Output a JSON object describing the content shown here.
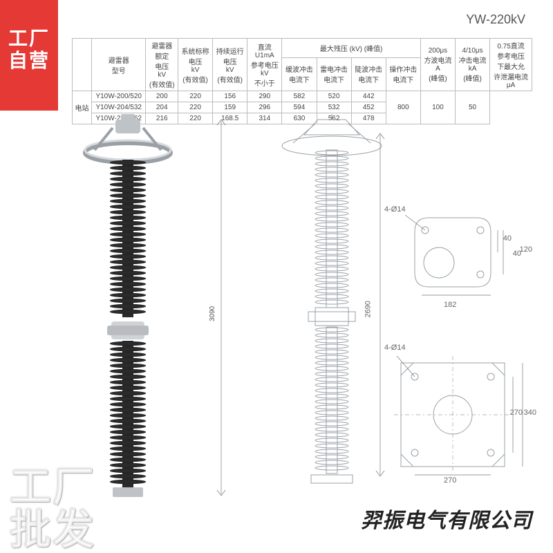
{
  "badge": {
    "line1": "工厂",
    "line2": "自营"
  },
  "model": "YW-220kV",
  "promo": {
    "line1": "工厂",
    "line2": "批发"
  },
  "company": "羿振电气有限公司",
  "table": {
    "header_bg": "#ffffff",
    "border": "#bbbbbb",
    "font_size": 10,
    "row_label": "电站",
    "cols": {
      "col0": "避雷器\n型号",
      "col1": "避雷器\n额定\n电压\nkV\n(有效值)",
      "col2": "系统标称\n电压\nkV\n(有效值)",
      "col3": "持续运行\n电压\nkV\n(有效值)",
      "col4": "直流\nU1mA\n参考电压\nkV\n不小于",
      "group5": "最大残压 (kV) (峰值)",
      "col5a": "缓波冲击\n电流下",
      "col5b": "雷电冲击\n电流下",
      "col5c": "陡波冲击\n电流下",
      "col5d": "操作冲击\n电流下",
      "col6": "200μs\n方波电流\nA\n(峰值)",
      "col7": "4/10μs\n冲击电流\nkA\n(峰值)",
      "col8": "0.75直流\n参考电压\n下最大允\n许泄漏电流\nμA"
    },
    "rows": [
      {
        "model": "Y10W-200/520",
        "v": [
          "200",
          "220",
          "156",
          "290",
          "582",
          "520",
          "442",
          "800",
          "100",
          "50"
        ]
      },
      {
        "model": "Y10W-204/532",
        "v": [
          "204",
          "220",
          "159",
          "296",
          "594",
          "532",
          "452",
          "800",
          "100",
          "50"
        ]
      },
      {
        "model": "Y10W-216/562",
        "v": [
          "216",
          "220",
          "168.5",
          "314",
          "630",
          "562",
          "478",
          "800",
          "100",
          "50"
        ]
      }
    ]
  },
  "drawing": {
    "photo_color": "#2b2b2b",
    "metal_color": "#b0b4b8",
    "outline": "#9aa0a6",
    "dim_text_color": "#555555",
    "overall_height": "3090",
    "inner_height": "2690",
    "flange_top": {
      "hole_note": "4-Ø14",
      "pitch_h": "40",
      "pitch_v": "40",
      "height": "120",
      "width": "182"
    },
    "flange_bot": {
      "hole_note": "4-Ø14",
      "bolt_circle": "270",
      "overall": "340",
      "width_note": "270"
    }
  },
  "colors": {
    "badge_bg": "#e53935",
    "badge_fg": "#ffffff",
    "page_bg": "#ffffff",
    "promo_fg": "#ffffff",
    "company_fg": "#222222"
  }
}
